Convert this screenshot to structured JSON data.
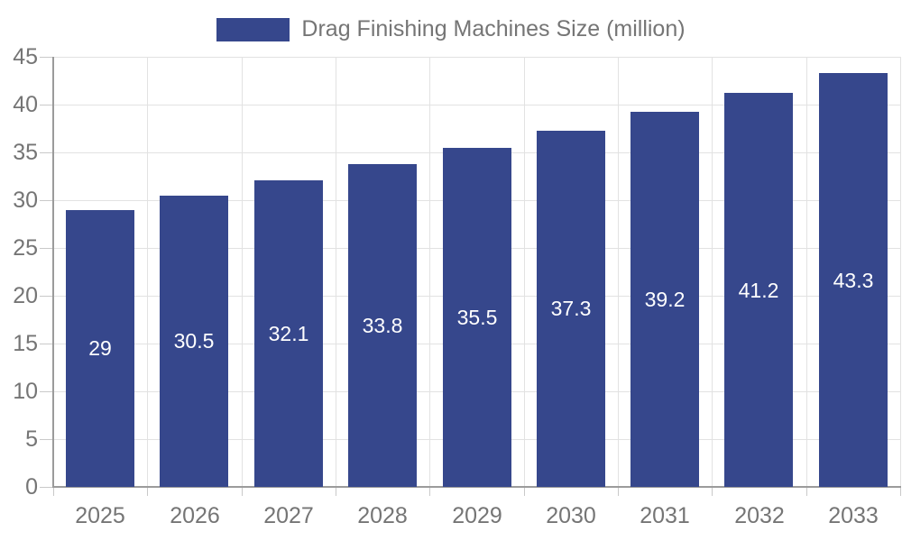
{
  "legend": {
    "label": "Drag Finishing Machines Size (million)"
  },
  "chart_data": {
    "type": "bar",
    "title": "Drag Finishing Machines Size (million)",
    "series_name": "Drag Finishing Machines Size (million)",
    "categories": [
      "2025",
      "2026",
      "2027",
      "2028",
      "2029",
      "2030",
      "2031",
      "2032",
      "2033"
    ],
    "values": [
      29,
      30.5,
      32.1,
      33.8,
      35.5,
      37.3,
      39.2,
      41.2,
      43.3
    ],
    "value_labels": [
      "29",
      "30.5",
      "32.1",
      "33.8",
      "35.5",
      "37.3",
      "39.2",
      "41.2",
      "43.3"
    ],
    "xlabel": "",
    "ylabel": "",
    "ylim": [
      0,
      45
    ],
    "yticks": [
      0,
      5,
      10,
      15,
      20,
      25,
      30,
      35,
      40,
      45
    ],
    "grid": true,
    "legend_position": "top-center",
    "colors": {
      "bar": "#36478C",
      "value_label": "#FFFFFF",
      "axis_line": "#9B9B9B",
      "grid_line": "#E2E2E2",
      "tick_mark": "#C9C9C9",
      "tick_label": "#757575",
      "legend_text": "#757575",
      "background": "#FFFFFF"
    }
  }
}
